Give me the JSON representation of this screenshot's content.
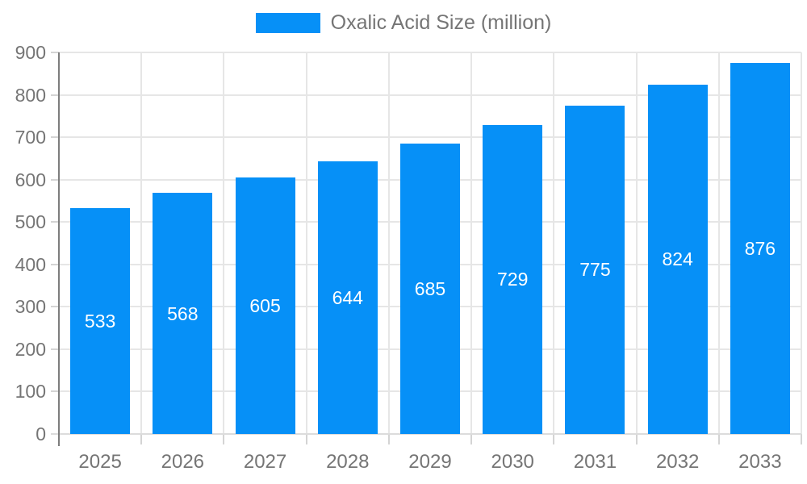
{
  "legend": {
    "label": "Oxalic Acid Size (million)"
  },
  "chart_data": {
    "type": "bar",
    "title": "Oxalic Acid Size (million)",
    "series_name": "Oxalic Acid Size (million)",
    "categories": [
      "2025",
      "2026",
      "2027",
      "2028",
      "2029",
      "2030",
      "2031",
      "2032",
      "2033"
    ],
    "values": [
      533,
      568,
      605,
      644,
      685,
      729,
      775,
      824,
      876
    ],
    "xlabel": "",
    "ylabel": "",
    "ylim": [
      0,
      900
    ],
    "ytick_step": 100,
    "ytick_labels": [
      "0",
      "100",
      "200",
      "300",
      "400",
      "500",
      "600",
      "700",
      "800",
      "900"
    ],
    "grid": true,
    "legend_position": "top-center",
    "value_labels": "inside-middle",
    "colors": {
      "bar": "#0690f7",
      "value_label": "#ffffff",
      "axis_text": "#757575",
      "gridline": "#e6e6e6",
      "axis_line": "#7d7d7d",
      "tick": "#d4d4d4",
      "background": "#ffffff"
    }
  }
}
